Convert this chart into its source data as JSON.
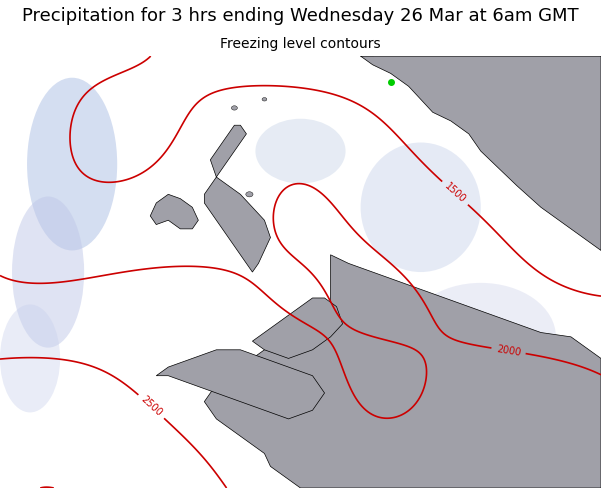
{
  "title": "Precipitation for 3 hrs ending Wednesday 26 Mar at 6am GMT",
  "subtitle": "Freezing level contours",
  "title_fontsize": 13,
  "subtitle_fontsize": 10,
  "title_color": "#000000",
  "background_color": "#ffffff",
  "header_bg": "#f0f0f0",
  "map_bg_ocean": "#c8d8f0",
  "map_bg_land_light": "#d8d8e8",
  "contour_color": "#cc0000",
  "contour_linewidth": 1.2,
  "contour_label_fontsize": 7,
  "figsize": [
    6.01,
    4.88
  ],
  "dpi": 100
}
